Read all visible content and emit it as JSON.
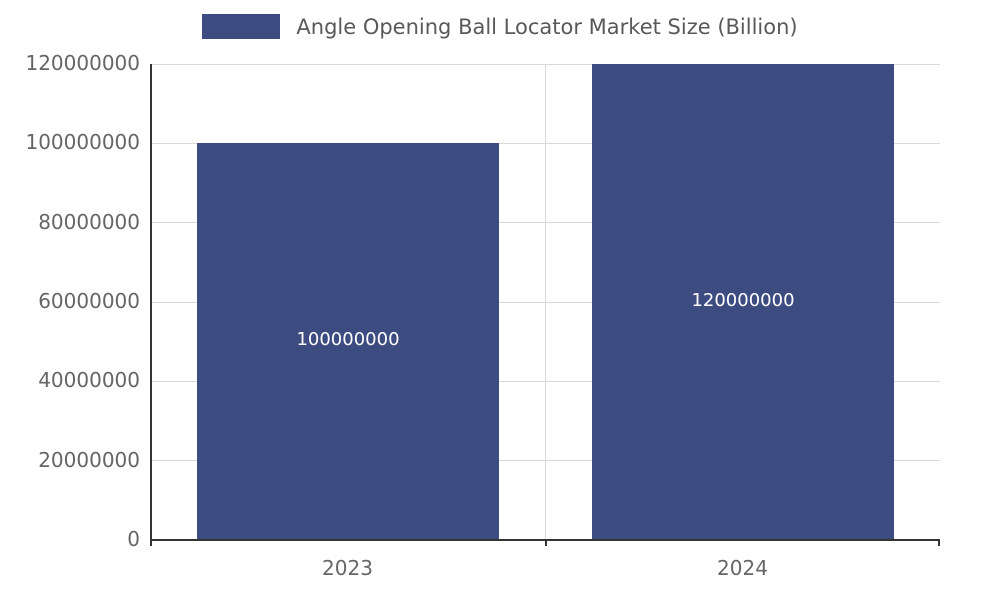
{
  "chart_data": {
    "type": "bar",
    "title": "Angle Opening Ball Locator Market Size (Billion)",
    "categories": [
      "2023",
      "2024"
    ],
    "values": [
      100000000,
      120000000
    ],
    "bar_labels": [
      "100000000",
      "120000000"
    ],
    "xlabel": "",
    "ylabel": "",
    "ylim": [
      0,
      120000000
    ],
    "yticks": [
      0,
      20000000,
      40000000,
      60000000,
      80000000,
      100000000,
      120000000
    ],
    "grid": true,
    "legend_position": "top",
    "colors": {
      "bar": "#3C4C80",
      "grid": "#d9d9d9",
      "axis": "#333333",
      "tick_label": "#666666",
      "title": "#595959",
      "bar_label": "#ffffff"
    }
  }
}
